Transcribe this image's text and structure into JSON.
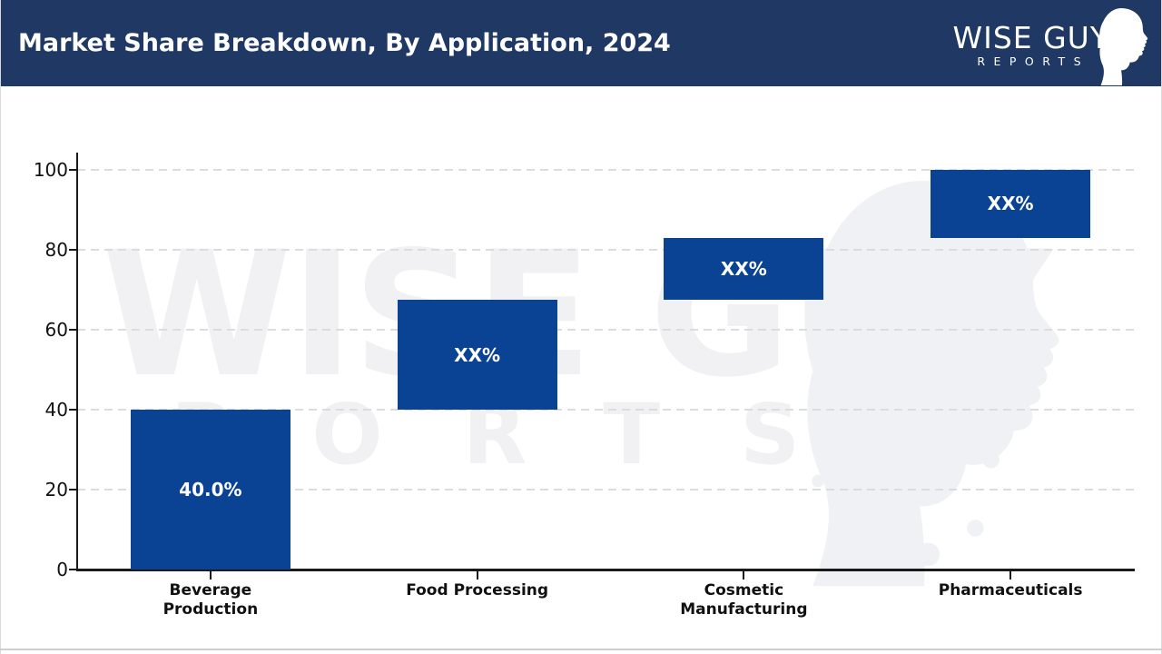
{
  "header": {
    "title": "Market Share Breakdown, By Application, 2024",
    "bg_color": "#203864",
    "logo": {
      "line1": "WISE GUY",
      "line2": "REPORTS"
    }
  },
  "watermark": {
    "line1": "WISE GUY",
    "line2": "PORTS"
  },
  "chart_data": {
    "type": "bar",
    "variant": "waterfall",
    "title": "Market Share Breakdown, By Application, 2024",
    "categories": [
      "Beverage Production",
      "Food Processing",
      "Cosmetic Manufacturing",
      "Pharmaceuticals"
    ],
    "segments": [
      {
        "category": "Beverage Production",
        "start": 0,
        "end": 40,
        "label": "40.0%"
      },
      {
        "category": "Food Processing",
        "start": 40,
        "end": 67.5,
        "label": "XX%"
      },
      {
        "category": "Cosmetic Manufacturing",
        "start": 67.5,
        "end": 83,
        "label": "XX%"
      },
      {
        "category": "Pharmaceuticals",
        "start": 83,
        "end": 100,
        "label": "XX%"
      }
    ],
    "yticks": [
      0,
      20,
      40,
      60,
      80,
      100
    ],
    "ylim": [
      0,
      105
    ],
    "xlabel": "",
    "ylabel": "",
    "grid": "horizontal-dashed",
    "legend": "none",
    "bar_color": "#0a4294",
    "bar_label_color": "#ffffff",
    "axis_color": "#1a1a1a",
    "gridline_color": "#dcdcdc"
  }
}
